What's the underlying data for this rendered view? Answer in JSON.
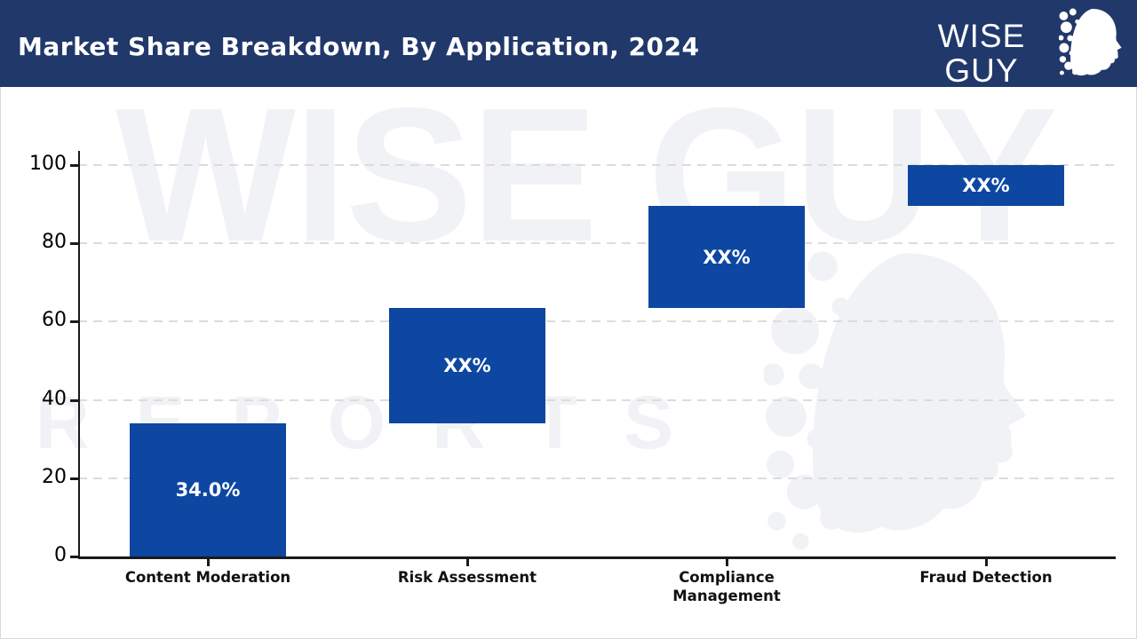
{
  "header": {
    "title": "Market Share Breakdown, By Application, 2024",
    "bg_color": "#21386b",
    "logo": {
      "line1": "WISE GUY",
      "line2": "REPORTS"
    }
  },
  "watermark": {
    "line1": "WISE GUY",
    "line2": "REPORTS"
  },
  "chart_data": {
    "type": "bar",
    "subtype": "waterfall-floating-bars",
    "title": "Market Share Breakdown, By Application, 2024",
    "categories": [
      "Content Moderation",
      "Risk Assessment",
      "Compliance\nManagement",
      "Fraud Detection"
    ],
    "segments": [
      {
        "start": 0,
        "end": 34,
        "label": "34.0%"
      },
      {
        "start": 34,
        "end": 63.5,
        "label": "XX%"
      },
      {
        "start": 63.5,
        "end": 89.5,
        "label": "XX%"
      },
      {
        "start": 89.5,
        "end": 100,
        "label": "XX%"
      }
    ],
    "values": [
      34,
      29.5,
      26,
      10.5
    ],
    "xlabel": "",
    "ylabel": "",
    "ylim": [
      0,
      100
    ],
    "yticks": [
      0,
      20,
      40,
      60,
      80,
      100
    ],
    "grid": "horizontal-dashed",
    "legend": "none",
    "bar_color": "#0d47a1",
    "bar_label_color": "#ffffff",
    "axis_color": "#1a1a1a",
    "grid_color": "#dcdcdc"
  }
}
